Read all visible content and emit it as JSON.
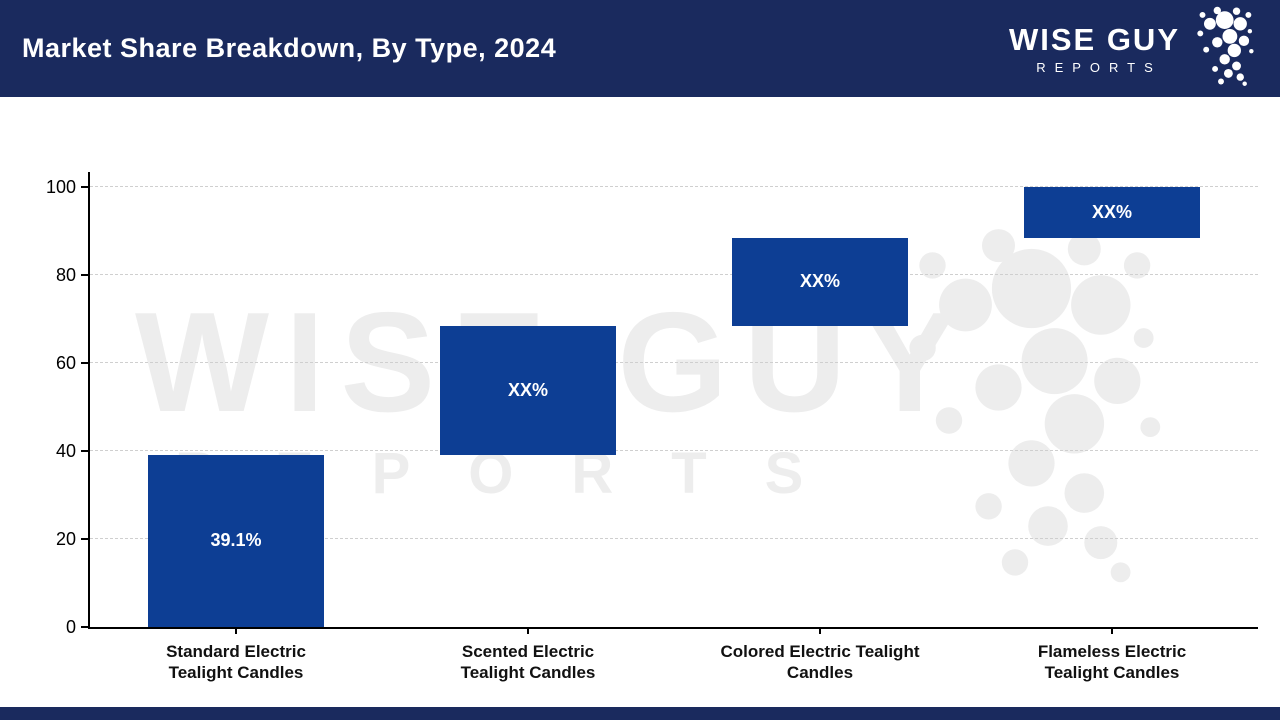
{
  "header": {
    "title": "Market Share Breakdown, By Type, 2024",
    "logo_line1": "WISE GUY",
    "logo_line2": "REPORTS"
  },
  "watermark": {
    "line1": "WISE GUY",
    "line2": "REPORTS"
  },
  "chart_data": {
    "type": "bar",
    "subtype": "stacked-waterfall",
    "title": "Market Share Breakdown, By Type, 2024",
    "categories": [
      "Standard Electric Tealight Candles",
      "Scented Electric Tealight Candles",
      "Colored Electric Tealight Candles",
      "Flameless Electric Tealight Candles"
    ],
    "segments": [
      {
        "category": "Standard Electric Tealight Candles",
        "start": 0,
        "end": 39.1,
        "label": "39.1%"
      },
      {
        "category": "Scented Electric Tealight Candles",
        "start": 39.1,
        "end": 68.5,
        "label": "XX%"
      },
      {
        "category": "Colored Electric Tealight Candles",
        "start": 68.5,
        "end": 88.5,
        "label": "XX%"
      },
      {
        "category": "Flameless Electric Tealight Candles",
        "start": 88.5,
        "end": 100,
        "label": "XX%"
      }
    ],
    "ylim": [
      0,
      100
    ],
    "yticks": [
      0,
      20,
      40,
      60,
      80,
      100
    ],
    "xlabel": "",
    "ylabel": "",
    "grid": "horizontal-dashed",
    "legend": "none",
    "bar_color": "#0d3e94",
    "bar_label_color": "#ffffff"
  },
  "colors": {
    "header_bg": "#1a2a5e",
    "footer_bg": "#1a2a5e",
    "watermark": "#ededed",
    "axis": "#000000",
    "gridline": "#cfcfcf"
  }
}
